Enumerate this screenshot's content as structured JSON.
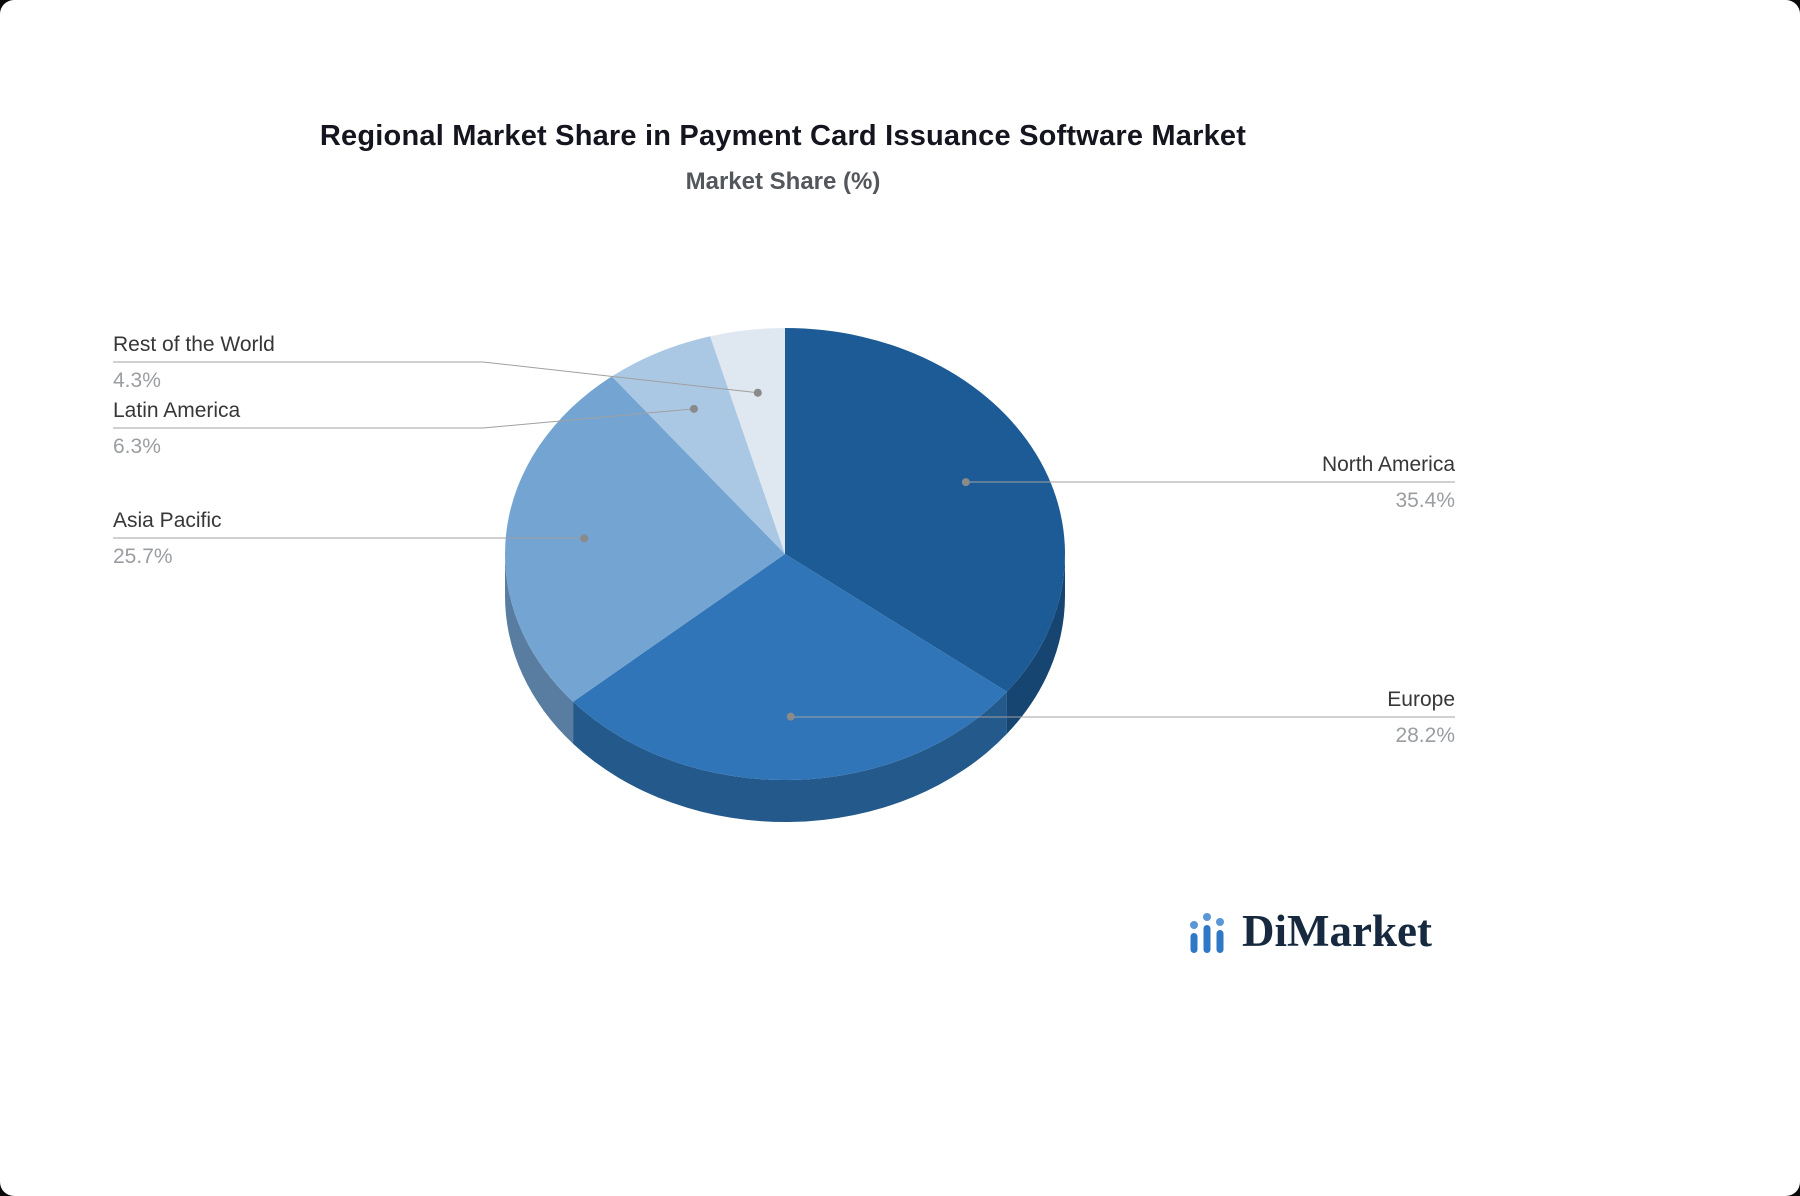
{
  "title": "Regional Market Share in Payment Card Issuance Software Market",
  "subtitle": "Market Share (%)",
  "logo": {
    "text": "DiMarket"
  },
  "chart_data": {
    "type": "pie",
    "title": "Regional Market Share in Payment Card Issuance Software Market",
    "subtitle": "Market Share (%)",
    "unit": "%",
    "effect": "3d",
    "direction": "clockwise",
    "start_angle_deg": 0,
    "legend": "none",
    "series": [
      {
        "name": "North America",
        "value": 35.4,
        "label": "35.4%",
        "color": "#1d5b96"
      },
      {
        "name": "Europe",
        "value": 28.2,
        "label": "28.2%",
        "color": "#2f75b8"
      },
      {
        "name": "Asia Pacific",
        "value": 25.7,
        "label": "25.7%",
        "color": "#74a5d2"
      },
      {
        "name": "Latin America",
        "value": 6.3,
        "label": "6.3%",
        "color": "#aac8e4"
      },
      {
        "name": "Rest of the World",
        "value": 4.3,
        "label": "4.3%",
        "color": "#dfe7f0"
      }
    ]
  }
}
